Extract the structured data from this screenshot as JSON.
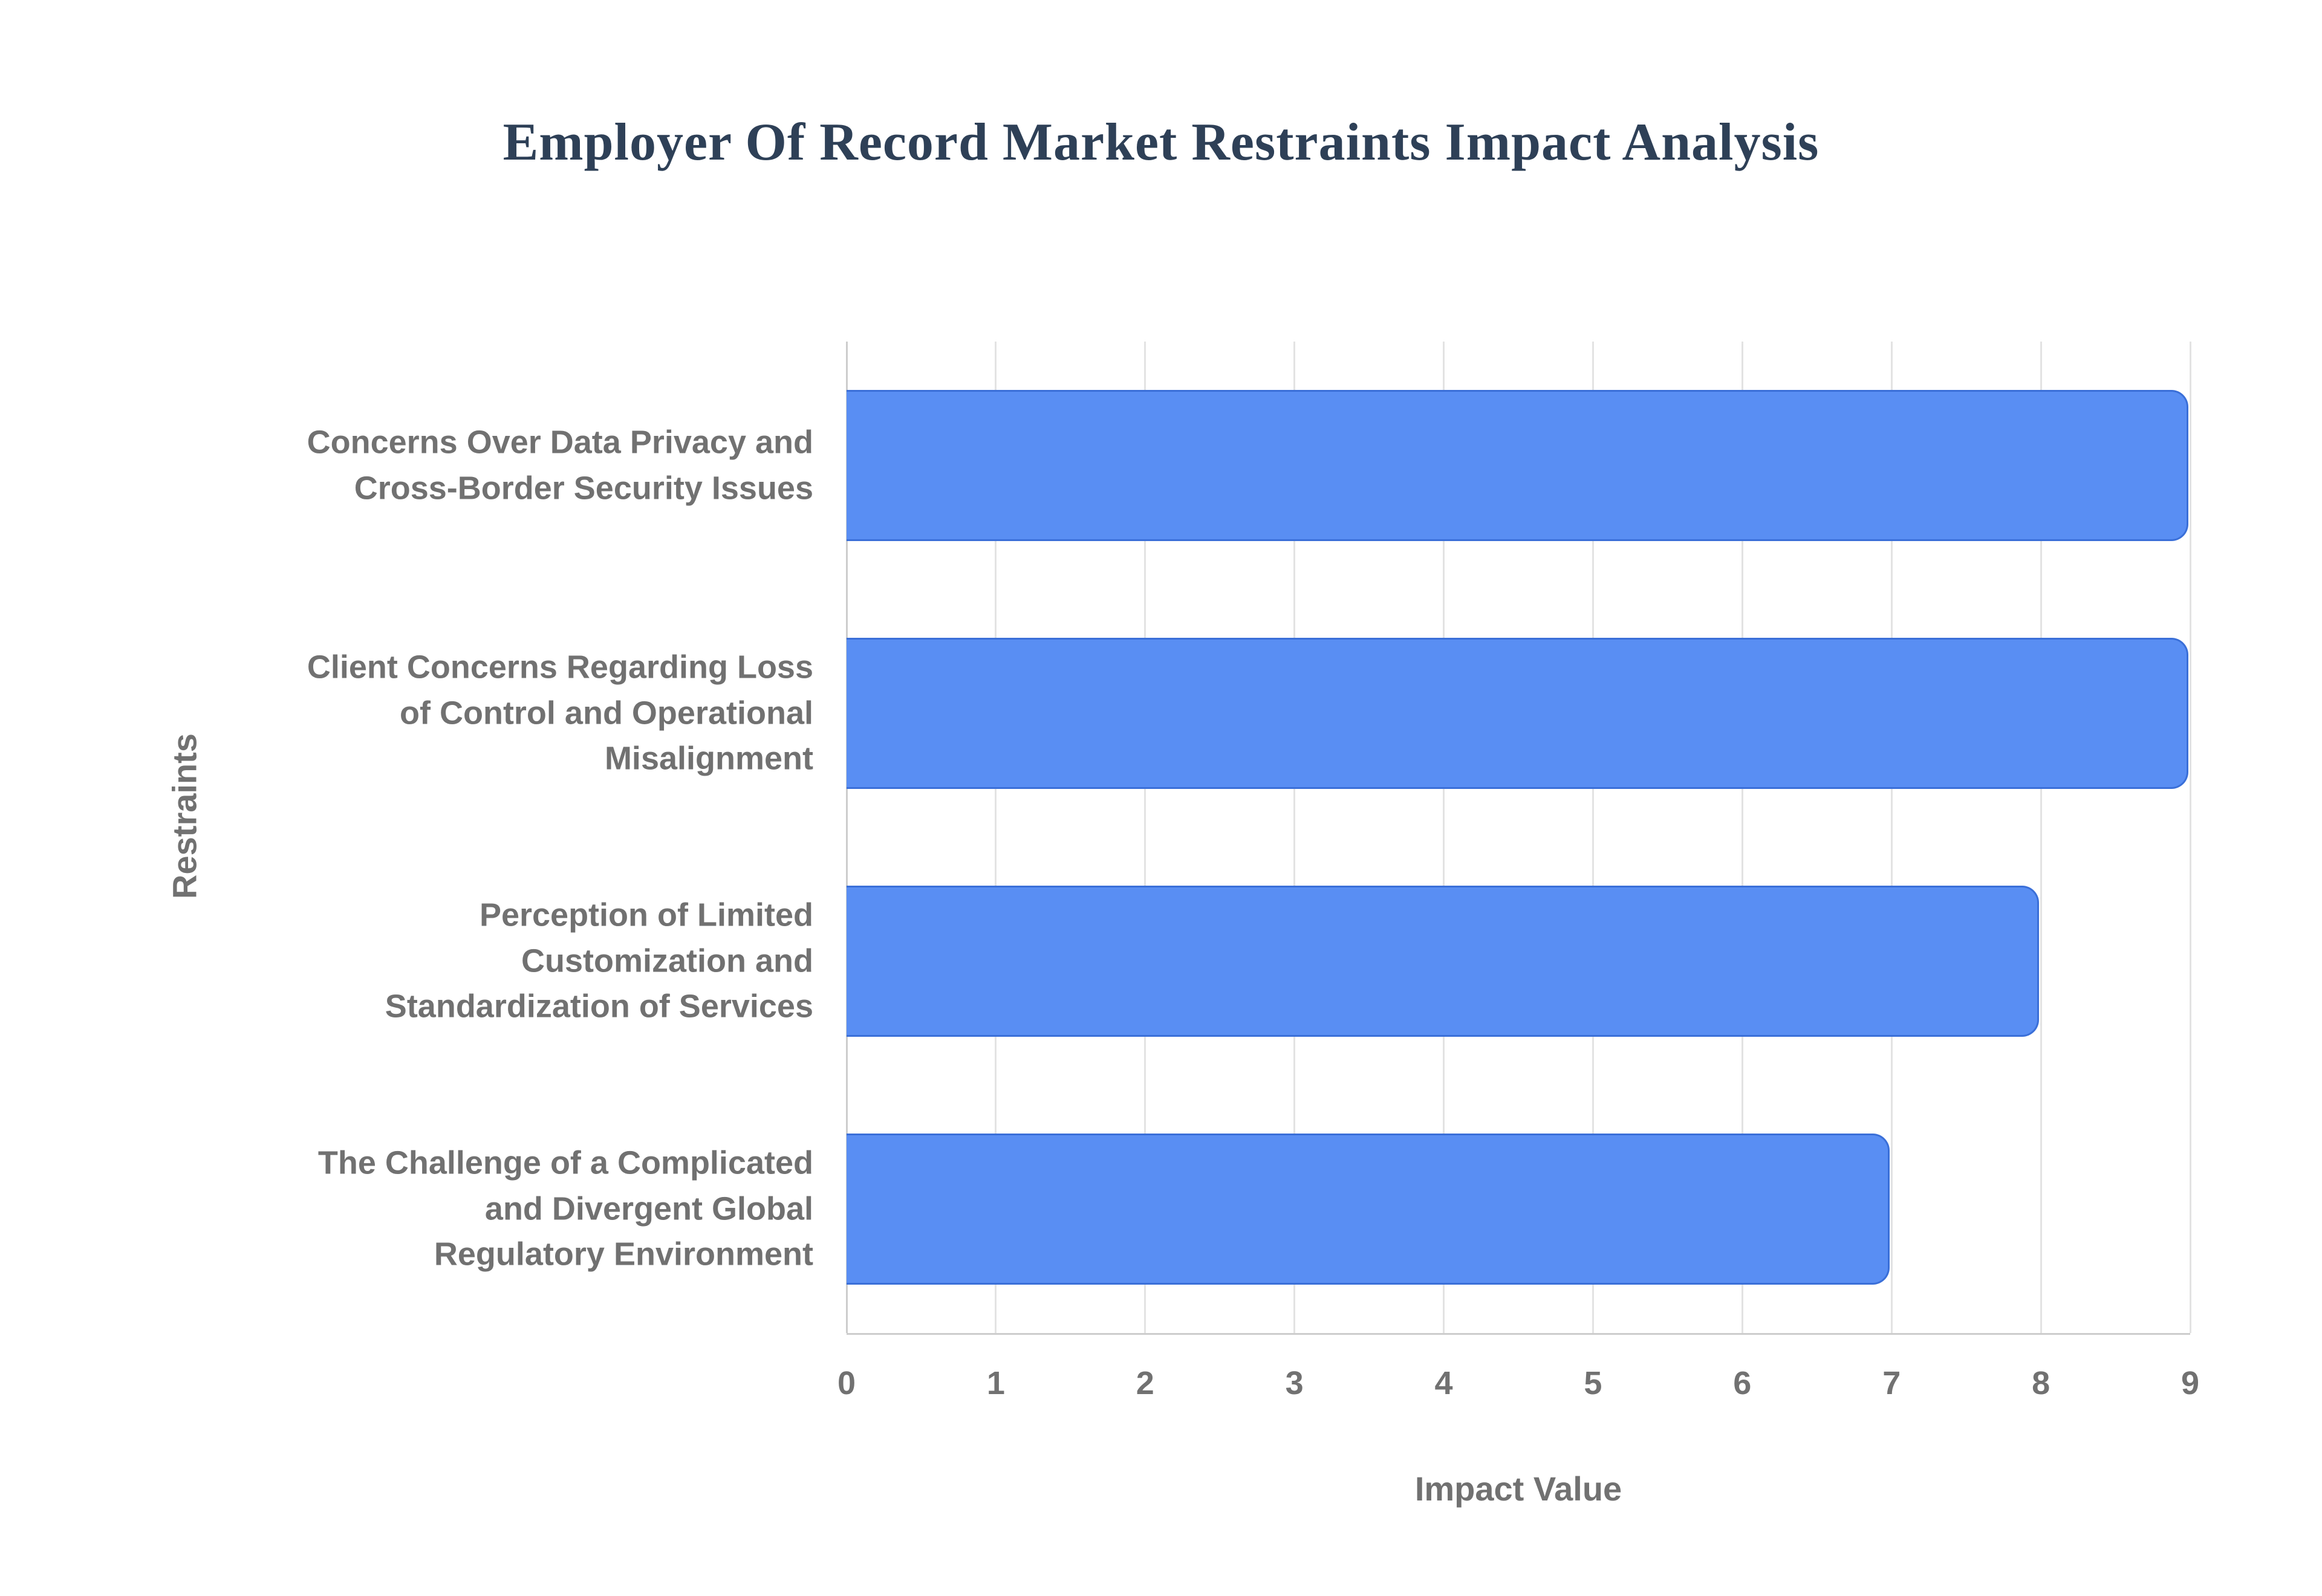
{
  "chart_data": {
    "type": "bar",
    "orientation": "horizontal",
    "title": "Employer Of Record Market Restraints Impact Analysis",
    "xlabel": "Impact Value",
    "ylabel": "Restraints",
    "categories": [
      "Concerns Over Data Privacy and Cross-Border Security Issues",
      "Client Concerns Regarding Loss of Control and Operational Misalignment",
      "Perception of Limited Customization and Standardization of Services",
      "The Challenge of a Complicated and Divergent Global Regulatory Environment"
    ],
    "category_lines": [
      [
        "Concerns Over Data Privacy and",
        "Cross-Border Security Issues"
      ],
      [
        "Client Concerns Regarding Loss",
        "of Control and Operational",
        "Misalignment"
      ],
      [
        "Perception of Limited",
        "Customization and",
        "Standardization of Services"
      ],
      [
        "The Challenge of a Complicated",
        "and Divergent Global",
        "Regulatory Environment"
      ]
    ],
    "values": [
      9,
      9,
      8,
      7
    ],
    "xlim": [
      0,
      9
    ],
    "xticks": [
      "0",
      "1",
      "2",
      "3",
      "4",
      "5",
      "6",
      "7",
      "8",
      "9"
    ],
    "legend": "none",
    "grid": "vertical",
    "colors": {
      "bar_fill": "#598ef3",
      "bar_border": "#3a6fd8",
      "grid_line": "#e3e3e3",
      "axis_line": "#cdcdcd",
      "label_text": "#717171",
      "title_text": "#2e4057",
      "background": "#ffffff"
    }
  }
}
